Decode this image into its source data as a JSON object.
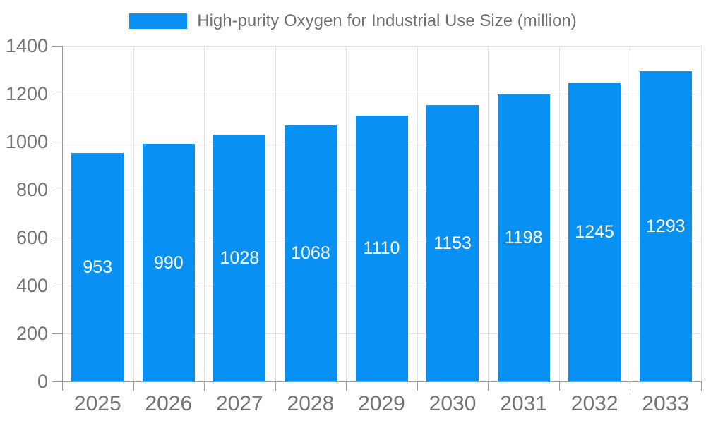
{
  "legend": {
    "label": "High-purity Oxygen for Industrial Use Size (million)"
  },
  "chart_data": {
    "type": "bar",
    "title": "High-purity Oxygen for Industrial Use Size (million)",
    "categories": [
      "2025",
      "2026",
      "2027",
      "2028",
      "2029",
      "2030",
      "2031",
      "2032",
      "2033"
    ],
    "values": [
      953,
      990,
      1028,
      1068,
      1110,
      1153,
      1198,
      1245,
      1293
    ],
    "xlabel": "",
    "ylabel": "",
    "ylim": [
      0,
      1400
    ],
    "yticks": [
      0,
      200,
      400,
      600,
      800,
      1000,
      1200,
      1400
    ],
    "grid": true,
    "legend_position": "top",
    "value_labels": "centered-inside-bars",
    "colors": {
      "bar": "#0890f2",
      "value_label": "#ffffff",
      "axis_text": "#747474",
      "legend_text": "#6f6f6f",
      "gridline": "#e2e2e2",
      "axis_line": "#999999"
    }
  }
}
